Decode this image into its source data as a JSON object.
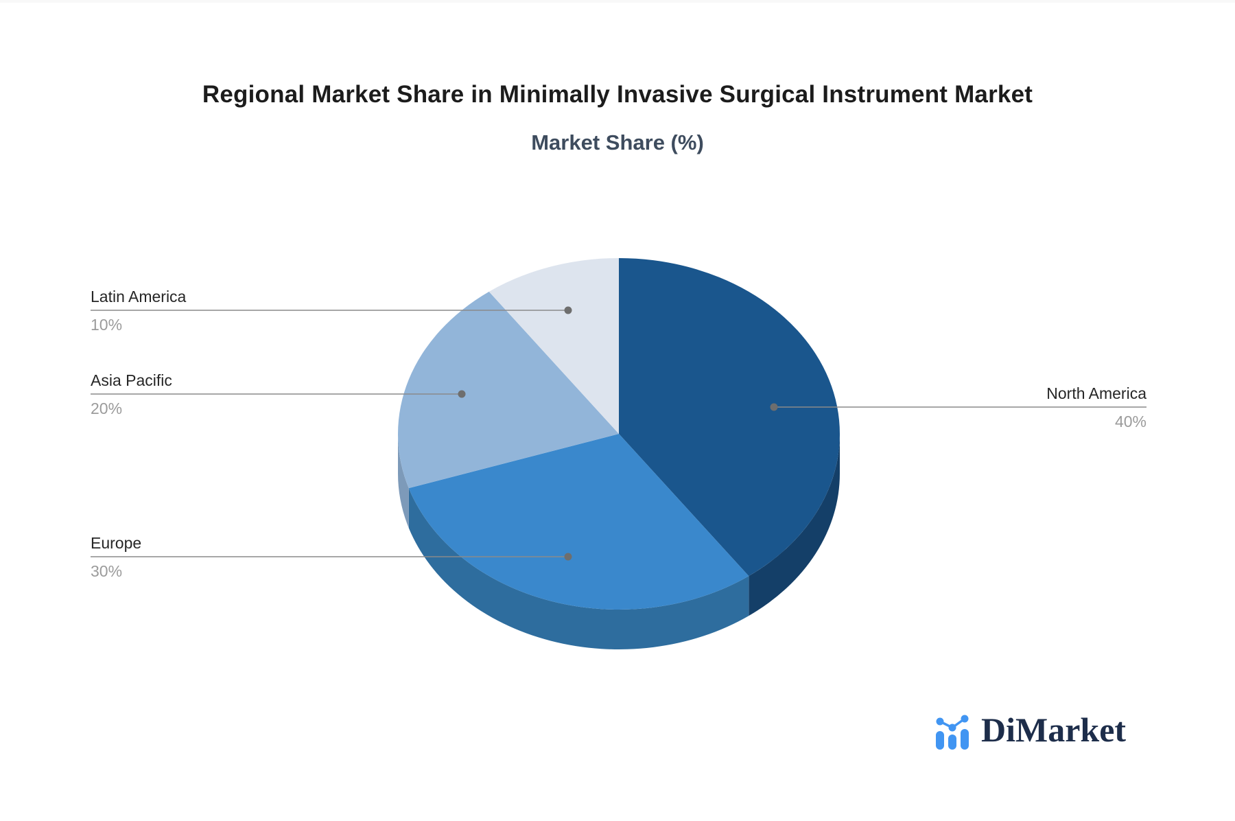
{
  "header": {
    "title": "Regional Market Share in Minimally Invasive Surgical Instrument Market",
    "subtitle": "Market Share (%)",
    "title_color": "#1c1c1c",
    "subtitle_color": "#3e4c5e"
  },
  "chart_data": {
    "type": "pie",
    "style": "3d",
    "title": "Regional Market Share in Minimally Invasive Surgical Instrument Market",
    "value_axis_label": "Market Share (%)",
    "unit": "%",
    "start_angle": "12-oclock",
    "direction": "clockwise",
    "slices": [
      {
        "label": "North America",
        "value": 40,
        "value_label": "40%",
        "color": "#1a568d",
        "side_color": "#143f68",
        "label_side": "right"
      },
      {
        "label": "Europe",
        "value": 30,
        "value_label": "30%",
        "color": "#3a88cc",
        "side_color": "#2e6d9e",
        "label_side": "left"
      },
      {
        "label": "Asia Pacific",
        "value": 20,
        "value_label": "20%",
        "color": "#92b5d9",
        "side_color": "#7d9ab9",
        "label_side": "left"
      },
      {
        "label": "Latin America",
        "value": 10,
        "value_label": "10%",
        "color": "#dde4ee",
        "side_color": "#c3cedd",
        "label_side": "left"
      }
    ],
    "leader_line_color": "#8a8a8a",
    "leader_dot_color": "#6e6e6e",
    "label_text_color": "#262626",
    "value_text_color": "#9b9b9b",
    "legend_position": "none",
    "grid": false
  },
  "logo": {
    "text": "DiMarket",
    "text_color": "#1d2d4a",
    "icon_color": "#4195f2",
    "icon": "bar-line-chart-icon"
  }
}
